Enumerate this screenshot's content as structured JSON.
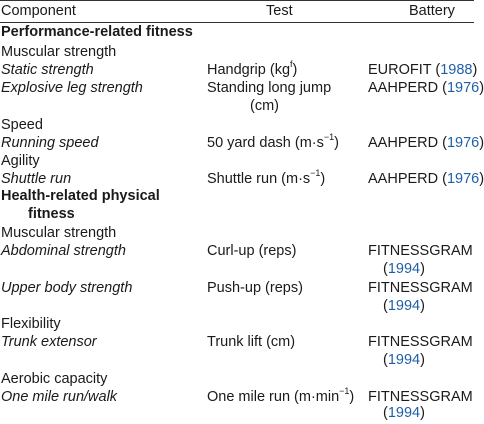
{
  "header": {
    "component": "Component",
    "test": "Test",
    "battery": "Battery"
  },
  "rows": [
    {
      "type": "section",
      "component": "Performance-related fitness"
    },
    {
      "type": "category",
      "component": "Muscular strength"
    },
    {
      "type": "item",
      "component": "Static strength",
      "test": "Handgrip (kg",
      "test_sup": "f",
      "test_tail": ")",
      "battery": "EUROFIT",
      "year": "1988"
    },
    {
      "type": "item",
      "component": "Explosive leg strength",
      "test": "Standing long jump",
      "test_line2": "(cm)",
      "battery": "AAHPERD",
      "year": "1976"
    },
    {
      "type": "category",
      "component": "Speed"
    },
    {
      "type": "item",
      "component": "Running speed",
      "test": "50 yard dash (m·s",
      "test_sup": "−1",
      "test_tail": ")",
      "battery": "AAHPERD",
      "year": "1976"
    },
    {
      "type": "category",
      "component": "Agility"
    },
    {
      "type": "item",
      "component": "Shuttle run",
      "test": "Shuttle run (m·s",
      "test_sup": "−1",
      "test_tail": ")",
      "battery": "AAHPERD",
      "year": "1976"
    },
    {
      "type": "section",
      "component": "Health-related physical",
      "component_line2": "fitness"
    },
    {
      "type": "category",
      "component": "Muscular strength"
    },
    {
      "type": "item",
      "component": "Abdominal strength",
      "test": "Curl-up (reps)",
      "battery": "FITNESSGRAM",
      "year": "1994"
    },
    {
      "type": "item",
      "component": "Upper body strength",
      "test": "Push-up (reps)",
      "battery": "FITNESSGRAM",
      "year": "1994"
    },
    {
      "type": "category",
      "component": "Flexibility"
    },
    {
      "type": "item",
      "component": "Trunk extensor",
      "test": "Trunk lift (cm)",
      "battery": "FITNESSGRAM",
      "year": "1994"
    },
    {
      "type": "category",
      "component": "Aerobic capacity"
    },
    {
      "type": "item",
      "component": "One mile run/walk",
      "test": "One mile run (m·min",
      "test_sup": "−1",
      "test_tail": ")",
      "battery": "FITNESSGRAM",
      "year": "1994"
    }
  ]
}
